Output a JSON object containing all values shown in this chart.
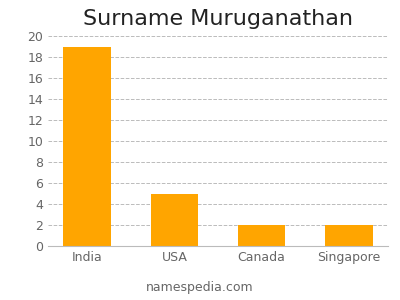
{
  "title": "Surname Muruganathan",
  "categories": [
    "India",
    "USA",
    "Canada",
    "Singapore"
  ],
  "values": [
    19,
    5,
    2,
    2
  ],
  "bar_color": "#FFA500",
  "ylim": [
    0,
    20
  ],
  "yticks": [
    0,
    2,
    4,
    6,
    8,
    10,
    12,
    14,
    16,
    18,
    20
  ],
  "title_fontsize": 16,
  "tick_fontsize": 9,
  "footer_text": "namespedia.com",
  "footer_fontsize": 9,
  "background_color": "#ffffff",
  "grid_color": "#bbbbbb",
  "title_font": "DejaVu Sans"
}
